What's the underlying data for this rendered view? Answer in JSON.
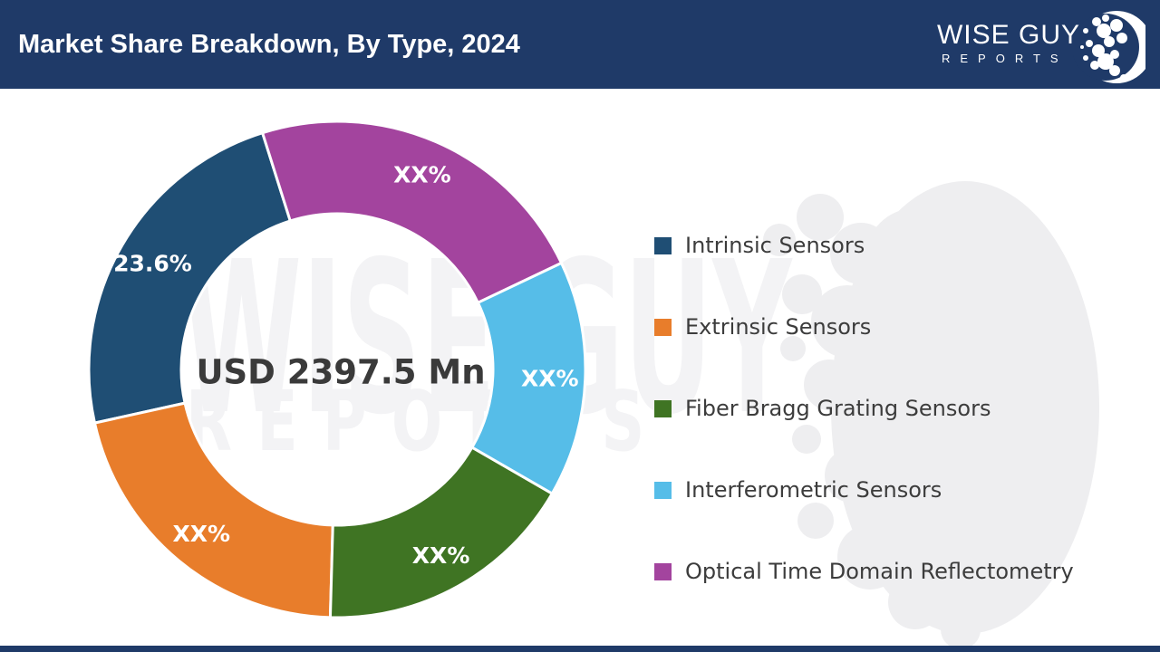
{
  "header": {
    "title": "Market Share Breakdown, By Type, 2024",
    "logo": {
      "line1": "WISE GUY",
      "line2": "REPORTS",
      "icon": "dotted-head-icon"
    }
  },
  "watermark": {
    "line1": "WISE GUY",
    "line2": "REPORTS"
  },
  "chart_data": {
    "type": "pie",
    "donut": true,
    "start_angle_deg": 107.5,
    "direction": "counterclockwise",
    "center_label": "USD 2397.5 Mn",
    "legend_position": "right",
    "segments": [
      {
        "name": "Intrinsic Sensors",
        "label": "23.6%",
        "percent": 23.6,
        "color": "#1F4E74"
      },
      {
        "name": "Extrinsic Sensors",
        "label": "XX%",
        "percent": 21.1,
        "color": "#E87D2B"
      },
      {
        "name": "Fiber Bragg Grating Sensors",
        "label": "XX%",
        "percent": 17.1,
        "color": "#3F7423"
      },
      {
        "name": "Interferometric Sensors",
        "label": "XX%",
        "percent": 15.4,
        "color": "#56BDE8"
      },
      {
        "name": "Optical Time Domain Reflectometry",
        "label": "XX%",
        "percent": 22.8,
        "color": "#A3449E"
      }
    ]
  },
  "colors": {
    "header_bg": "#1F3A68",
    "footer_bg": "#1F3A68",
    "center_text": "#3A3A3A",
    "legend_text": "#3C3C3C",
    "watermark": "#F3F3F5",
    "watermark_head": "#EEEEF0"
  }
}
